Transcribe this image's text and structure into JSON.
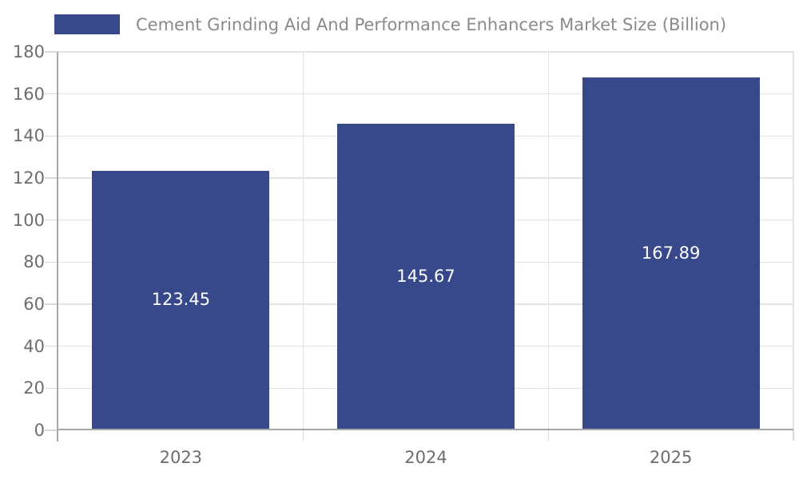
{
  "legend": {
    "label": "Cement Grinding Aid And Performance Enhancers Market Size (Billion)"
  },
  "chart_data": {
    "type": "bar",
    "title": "Cement Grinding Aid And Performance Enhancers Market Size (Billion)",
    "categories": [
      "2023",
      "2024",
      "2025"
    ],
    "values": [
      123.45,
      145.67,
      167.89
    ],
    "value_labels": [
      "123.45",
      "145.67",
      "167.89"
    ],
    "xlabel": "",
    "ylabel": "",
    "ylim": [
      0,
      180
    ],
    "yticks": [
      0,
      20,
      40,
      60,
      80,
      100,
      120,
      140,
      160,
      180
    ],
    "grid": true,
    "legend_position": "top-center",
    "colors": {
      "bar": "#38498B",
      "bar_label": "#ffffff",
      "grid": "#e3e3e3",
      "tick_mark": "#d9d9d9",
      "axis": "#a8a8a8",
      "tick_label": "#6d6d6d",
      "title_text": "#8a8a8a",
      "background": "#ffffff"
    }
  }
}
